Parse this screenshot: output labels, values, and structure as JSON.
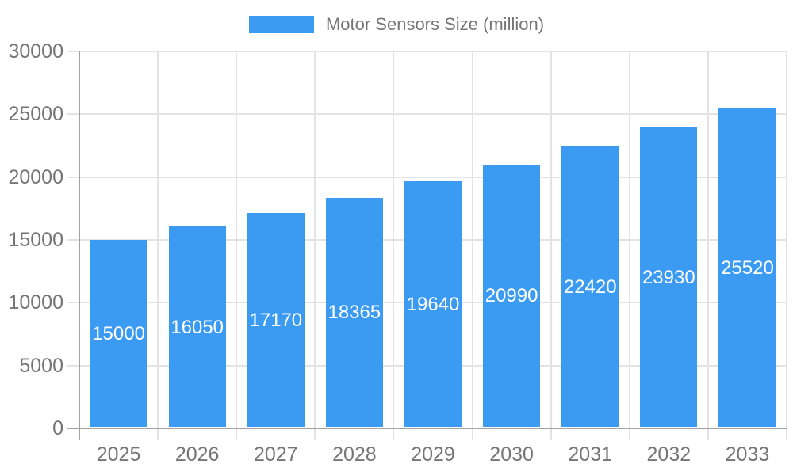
{
  "legend": {
    "label": "Motor Sensors Size (million)",
    "swatch_color": "#3b9bf2"
  },
  "chart_data": {
    "type": "bar",
    "title": "Motor Sensors Size (million)",
    "series_name": "Motor Sensors Size (million)",
    "categories": [
      "2025",
      "2026",
      "2027",
      "2028",
      "2029",
      "2030",
      "2031",
      "2032",
      "2033"
    ],
    "values": [
      15000,
      16050,
      17170,
      18365,
      19640,
      20990,
      22420,
      23930,
      25520
    ],
    "value_labels": [
      "15000",
      "16050",
      "17170",
      "18365",
      "19640",
      "20990",
      "22420",
      "23930",
      "25520"
    ],
    "xlabel": "",
    "ylabel": "",
    "ylim": [
      0,
      30000
    ],
    "yticks": [
      0,
      5000,
      10000,
      15000,
      20000,
      25000,
      30000
    ],
    "ytick_labels": [
      "0",
      "5000",
      "10000",
      "15000",
      "20000",
      "25000",
      "30000"
    ],
    "grid": true,
    "legend_position": "top",
    "colors": {
      "bar": "#3b9bf2",
      "grid": "#e3e3e3",
      "axis": "#a3a3a3",
      "axis_text": "#757575",
      "value_text": "#ffffff",
      "background": "#ffffff"
    }
  }
}
